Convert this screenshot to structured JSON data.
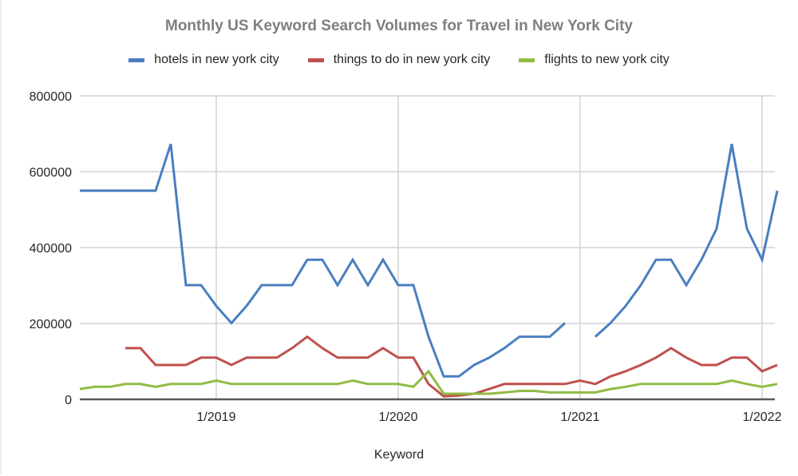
{
  "title": "Monthly US Keyword Search Volumes for Travel in New York City",
  "legend": [
    {
      "label": "hotels in new york city",
      "color": "#4a7fc1"
    },
    {
      "label": "things to do in new york city",
      "color": "#c0504d"
    },
    {
      "label": "flights to new york city",
      "color": "#8fbc45"
    }
  ],
  "xlabel": "Keyword",
  "chart_data": {
    "type": "line",
    "title": "Monthly US Keyword Search Volumes for Travel in New York City",
    "xlabel": "Keyword",
    "ylabel": "",
    "ylim": [
      0,
      800000
    ],
    "y_ticks": [
      0,
      200000,
      400000,
      600000,
      800000
    ],
    "x_tick_labels": [
      "1/2019",
      "1/2020",
      "1/2021",
      "1/2022"
    ],
    "grid": true,
    "legend_position": "top",
    "x": [
      "4/2018",
      "5/2018",
      "6/2018",
      "7/2018",
      "8/2018",
      "9/2018",
      "10/2018",
      "11/2018",
      "12/2018",
      "1/2019",
      "2/2019",
      "3/2019",
      "4/2019",
      "5/2019",
      "6/2019",
      "7/2019",
      "8/2019",
      "9/2019",
      "10/2019",
      "11/2019",
      "12/2019",
      "1/2020",
      "2/2020",
      "3/2020",
      "4/2020",
      "5/2020",
      "6/2020",
      "7/2020",
      "8/2020",
      "9/2020",
      "10/2020",
      "11/2020",
      "12/2020",
      "1/2021",
      "2/2021",
      "3/2021",
      "4/2021",
      "5/2021",
      "6/2021",
      "7/2021",
      "8/2021",
      "9/2021",
      "10/2021",
      "11/2021",
      "12/2021",
      "1/2022",
      "2/2022"
    ],
    "series": [
      {
        "name": "hotels in new york city",
        "color": "#4a7fc1",
        "values": [
          550000,
          550000,
          550000,
          550000,
          550000,
          550000,
          673000,
          301000,
          301000,
          246000,
          201000,
          246000,
          301000,
          301000,
          301000,
          368000,
          368000,
          301000,
          368000,
          301000,
          368000,
          301000,
          301000,
          165000,
          60500,
          60500,
          90500,
          110000,
          135000,
          165000,
          165000,
          165000,
          201000,
          null,
          165000,
          201000,
          246000,
          301000,
          368000,
          368000,
          301000,
          368000,
          450000,
          673000,
          450000,
          368000,
          550000
        ]
      },
      {
        "name": "things to do in new york city",
        "color": "#c0504d",
        "values": [
          null,
          null,
          null,
          135000,
          135000,
          90500,
          90500,
          90500,
          110000,
          110000,
          90500,
          110000,
          110000,
          110000,
          135000,
          165000,
          135000,
          110000,
          110000,
          110000,
          135000,
          110000,
          110000,
          40500,
          8100,
          9900,
          14800,
          27100,
          40500,
          40500,
          40500,
          40500,
          40500,
          49500,
          40500,
          60500,
          74000,
          90500,
          110000,
          135000,
          110000,
          90500,
          90500,
          110000,
          110000,
          74000,
          90500
        ]
      },
      {
        "name": "flights to new york city",
        "color": "#8fbc45",
        "values": [
          27100,
          33100,
          33100,
          40500,
          40500,
          33100,
          40500,
          40500,
          40500,
          49500,
          40500,
          40500,
          40500,
          40500,
          40500,
          40500,
          40500,
          40500,
          49500,
          40500,
          40500,
          40500,
          33100,
          74000,
          14800,
          14800,
          14800,
          14800,
          18100,
          22200,
          22200,
          18100,
          18100,
          18100,
          18100,
          27100,
          33100,
          40500,
          40500,
          40500,
          40500,
          40500,
          40500,
          49500,
          40500,
          33100,
          40500
        ]
      }
    ]
  }
}
